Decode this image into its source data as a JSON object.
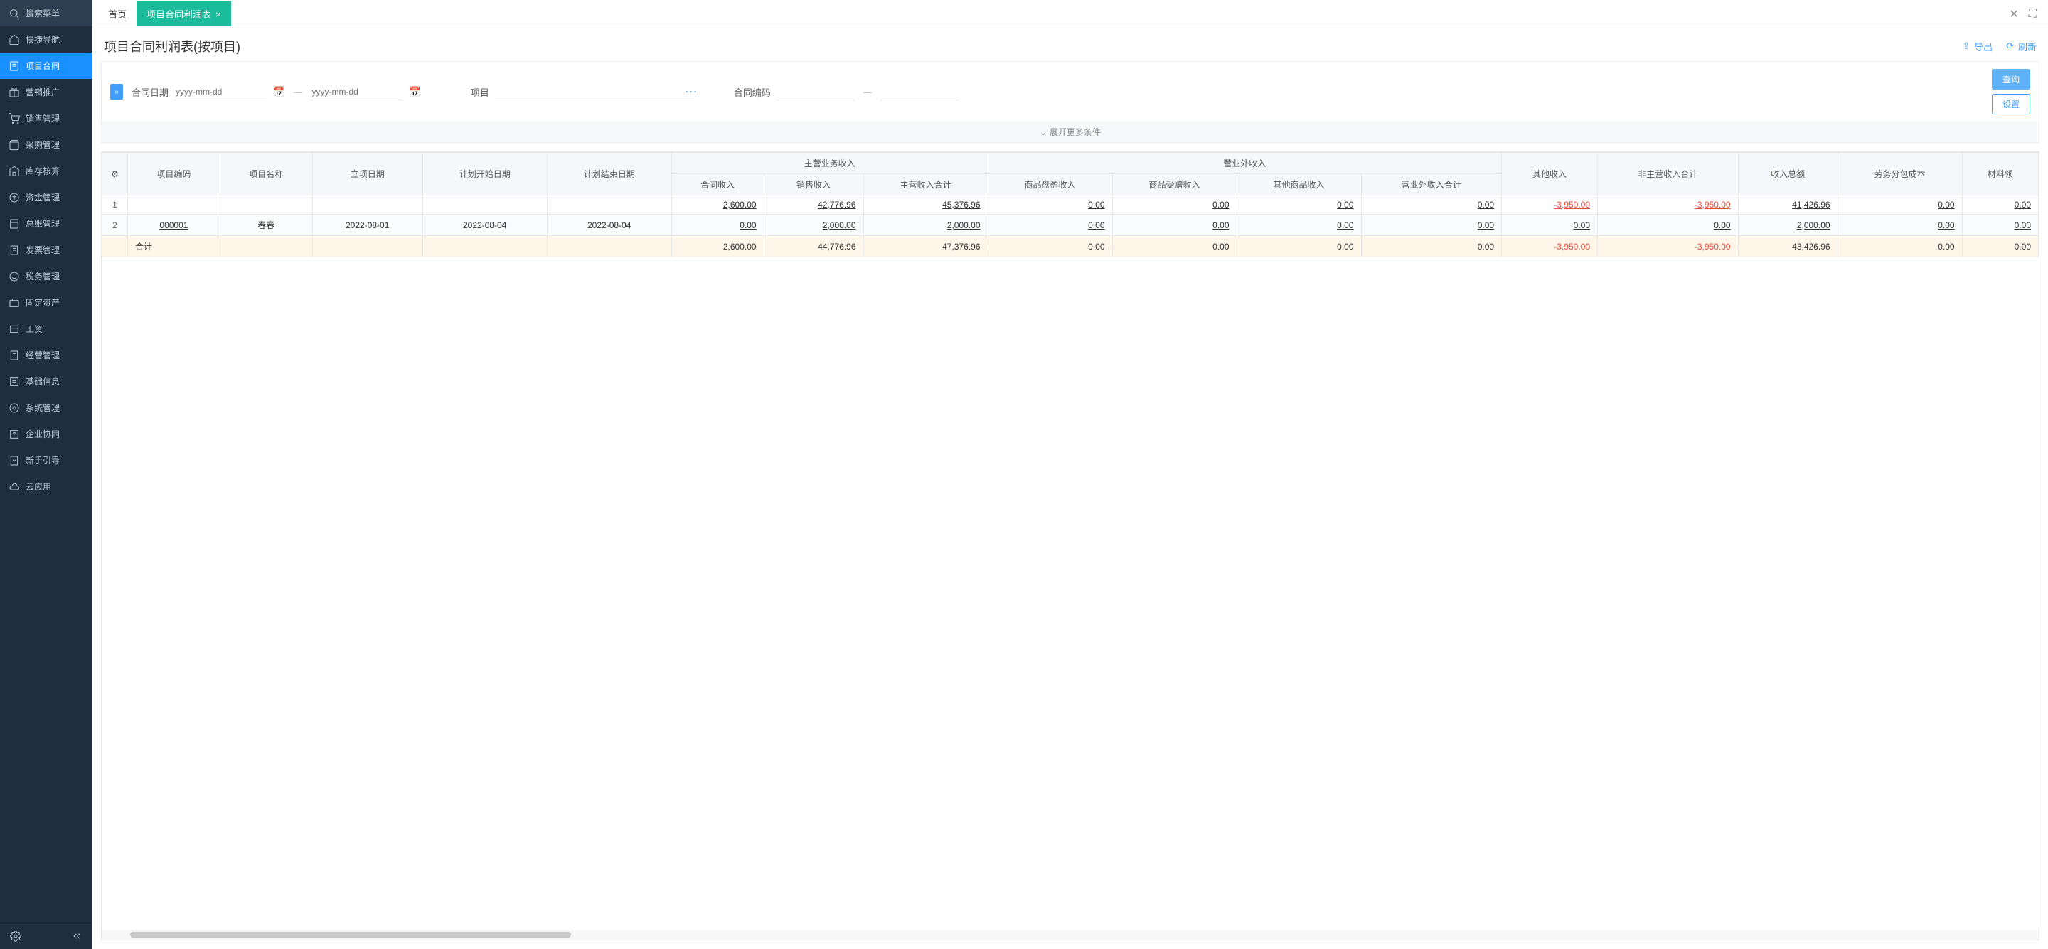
{
  "sidebar": {
    "items": [
      {
        "label": "搜索菜单",
        "icon": "search"
      },
      {
        "label": "快捷导航",
        "icon": "home"
      },
      {
        "label": "项目合同",
        "icon": "doc",
        "active": true
      },
      {
        "label": "营销推广",
        "icon": "gift"
      },
      {
        "label": "销售管理",
        "icon": "cart"
      },
      {
        "label": "采购管理",
        "icon": "bag"
      },
      {
        "label": "库存核算",
        "icon": "house"
      },
      {
        "label": "资金管理",
        "icon": "coin"
      },
      {
        "label": "总账管理",
        "icon": "book"
      },
      {
        "label": "发票管理",
        "icon": "invoice"
      },
      {
        "label": "税务管理",
        "icon": "tax"
      },
      {
        "label": "固定资产",
        "icon": "asset"
      },
      {
        "label": "工资",
        "icon": "salary"
      },
      {
        "label": "经营管理",
        "icon": "biz"
      },
      {
        "label": "基础信息",
        "icon": "info"
      },
      {
        "label": "系统管理",
        "icon": "gear"
      },
      {
        "label": "企业协同",
        "icon": "team"
      },
      {
        "label": "新手引导",
        "icon": "guide"
      },
      {
        "label": "云应用",
        "icon": "cloud"
      }
    ]
  },
  "tabs": {
    "home": "首页",
    "active": "项目合同利润表"
  },
  "page": {
    "title": "项目合同利润表(按项目)",
    "export": "导出",
    "refresh": "刷新"
  },
  "filters": {
    "contract_date_label": "合同日期",
    "date_placeholder": "yyyy-mm-dd",
    "project_label": "项目",
    "contract_code_label": "合同编码",
    "query_btn": "查询",
    "settings_btn": "设置",
    "expand_more": "展开更多条件"
  },
  "table": {
    "group_headers": {
      "main_income": "主营业务收入",
      "non_op_income": "营业外收入"
    },
    "headers": {
      "project_code": "项目编码",
      "project_name": "项目名称",
      "create_date": "立项日期",
      "plan_start": "计划开始日期",
      "plan_end": "计划结束日期",
      "contract_income": "合同收入",
      "sales_income": "销售收入",
      "main_income_total": "主营收入合计",
      "goods_surplus": "商品盘盈收入",
      "goods_donation": "商品受赠收入",
      "other_goods_income": "其他商品收入",
      "non_op_income_total": "营业外收入合计",
      "other_income": "其他收入",
      "non_main_income_total": "非主营收入合计",
      "income_total": "收入总额",
      "labor_sub_cost": "劳务分包成本",
      "material_cost": "材料领"
    },
    "rows": [
      {
        "idx": "1",
        "project_code": "",
        "project_name": "",
        "create_date": "",
        "plan_start": "",
        "plan_end": "",
        "contract_income": "2,600.00",
        "sales_income": "42,776.96",
        "main_income_total": "45,376.96",
        "goods_surplus": "0.00",
        "goods_donation": "0.00",
        "other_goods_income": "0.00",
        "non_op_income_total": "0.00",
        "other_income": "-3,950.00",
        "other_income_neg": true,
        "non_main_income_total": "-3,950.00",
        "non_main_income_total_neg": true,
        "income_total": "41,426.96",
        "labor_sub_cost": "0.00",
        "material_cost": "0.00"
      },
      {
        "idx": "2",
        "project_code": "000001",
        "project_name": "春春",
        "create_date": "2022-08-01",
        "plan_start": "2022-08-04",
        "plan_end": "2022-08-04",
        "contract_income": "0.00",
        "sales_income": "2,000.00",
        "main_income_total": "2,000.00",
        "goods_surplus": "0.00",
        "goods_donation": "0.00",
        "other_goods_income": "0.00",
        "non_op_income_total": "0.00",
        "other_income": "0.00",
        "other_income_neg": false,
        "non_main_income_total": "0.00",
        "non_main_income_total_neg": false,
        "income_total": "2,000.00",
        "labor_sub_cost": "0.00",
        "material_cost": "0.00"
      }
    ],
    "footer": {
      "label": "合计",
      "contract_income": "2,600.00",
      "sales_income": "44,776.96",
      "main_income_total": "47,376.96",
      "goods_surplus": "0.00",
      "goods_donation": "0.00",
      "other_goods_income": "0.00",
      "non_op_income_total": "0.00",
      "other_income": "-3,950.00",
      "non_main_income_total": "-3,950.00",
      "income_total": "43,426.96",
      "labor_sub_cost": "0.00",
      "material_cost": "0.00"
    }
  }
}
